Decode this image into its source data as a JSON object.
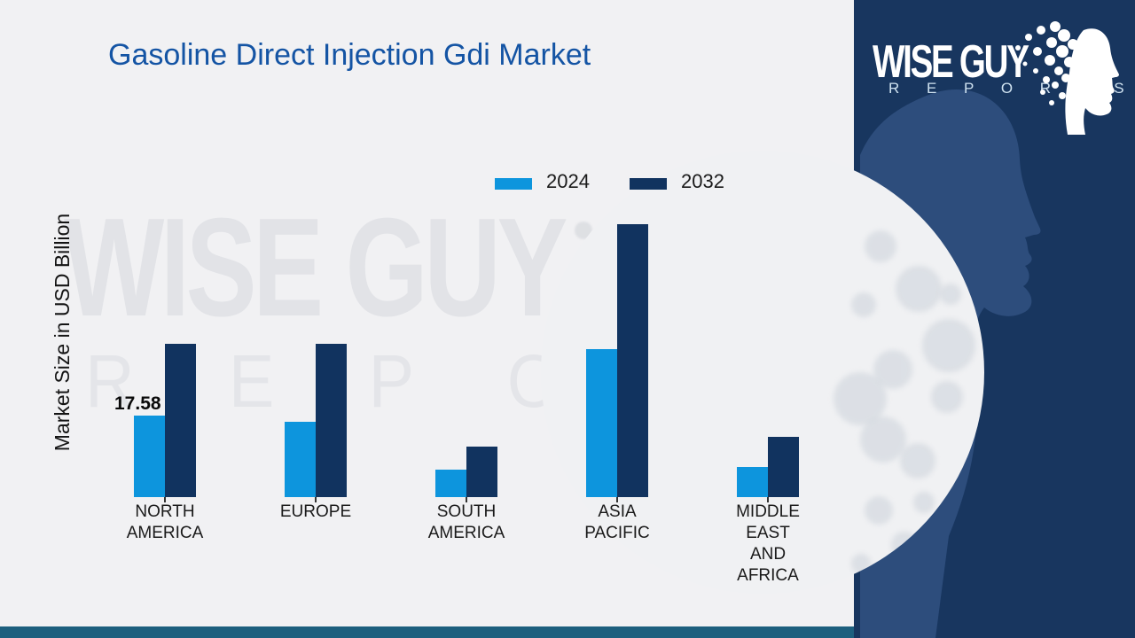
{
  "title": "Gasoline Direct Injection Gdi Market",
  "y_axis_label": "Market Size in USD Billion",
  "legend": [
    {
      "label": "2024",
      "color": "#0d95dd"
    },
    {
      "label": "2032",
      "color": "#11335f"
    }
  ],
  "annotation": {
    "value_label": "17.58",
    "applies_to": "NORTH AMERICA 2024"
  },
  "watermark": {
    "line1": "WISE GUY",
    "line2": "R E P O R T S"
  },
  "logo": {
    "line1": "WISE GUY",
    "line2": "R E P O R T S"
  },
  "colors": {
    "background": "#f1f1f3",
    "title_text": "#1454a4",
    "series_2024": "#0d95dd",
    "series_2032": "#11335f",
    "right_panel": "#18365f",
    "panel_face_silhouette": "#2d4d7c",
    "bottom_strip": "#1d5f7e",
    "watermark_text": "#d9dbe0",
    "axis_text": "#1a1a1a"
  },
  "chart_data": {
    "type": "bar",
    "title": "Gasoline Direct Injection Gdi Market",
    "xlabel": "",
    "ylabel": "Market Size in USD Billion",
    "ylim": [
      0,
      65
    ],
    "grid": false,
    "legend_position": "top-center",
    "categories": [
      "NORTH AMERICA",
      "EUROPE",
      "SOUTH AMERICA",
      "ASIA PACIFIC",
      "MIDDLE EAST AND AFRICA"
    ],
    "category_label_lines": [
      [
        "NORTH",
        "AMERICA"
      ],
      [
        "EUROPE"
      ],
      [
        "SOUTH",
        "AMERICA"
      ],
      [
        "ASIA",
        "PACIFIC"
      ],
      [
        "MIDDLE",
        "EAST",
        "AND",
        "AFRICA"
      ]
    ],
    "series": [
      {
        "name": "2024",
        "color": "#0d95dd",
        "values": [
          17.58,
          16.2,
          5.9,
          31.9,
          6.5
        ]
      },
      {
        "name": "2032",
        "color": "#11335f",
        "values": [
          33.1,
          33.1,
          10.9,
          58.9,
          13.0
        ]
      }
    ],
    "data_labels": [
      {
        "category": "NORTH AMERICA",
        "series": "2024",
        "text": "17.58"
      }
    ]
  }
}
